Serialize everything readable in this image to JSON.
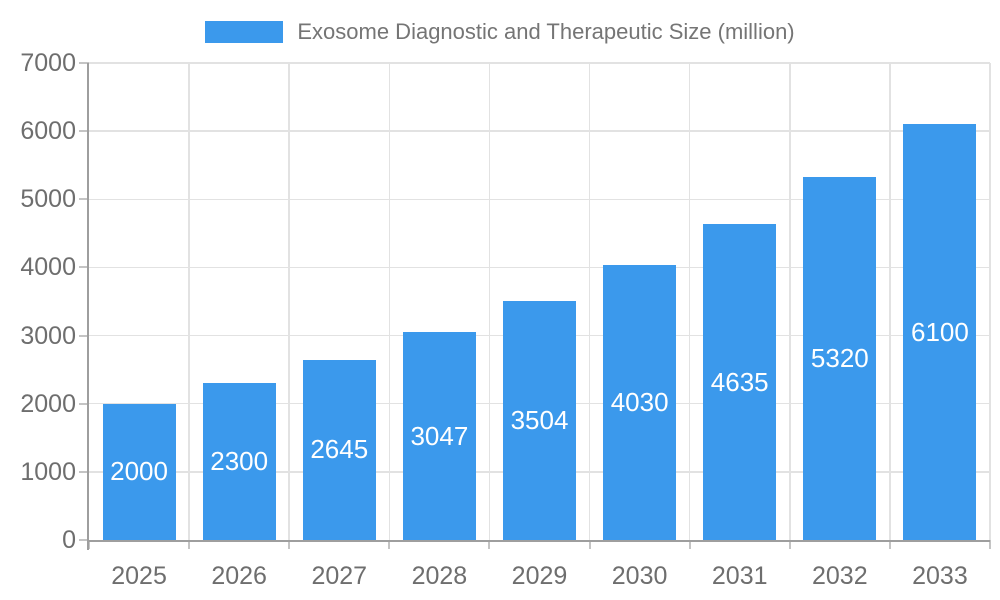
{
  "legend": {
    "swatch_color": "#3B99EC"
  },
  "chart_data": {
    "type": "bar",
    "title": "Exosome Diagnostic and Therapeutic Size (million)",
    "categories": [
      "2025",
      "2026",
      "2027",
      "2028",
      "2029",
      "2030",
      "2031",
      "2032",
      "2033"
    ],
    "values": [
      2000,
      2300,
      2645,
      3047,
      3504,
      4030,
      4635,
      5320,
      6100
    ],
    "xlabel": "",
    "ylabel": "",
    "ylim": [
      0,
      7000
    ],
    "ytick_step": 1000,
    "yticks": [
      "0",
      "1000",
      "2000",
      "3000",
      "4000",
      "5000",
      "6000",
      "7000"
    ],
    "grid": true,
    "legend_position": "top",
    "bar_label_position": "inside-center"
  },
  "style": {
    "bar_color": "#3B99EC",
    "value_label_color": "#ffffff",
    "axis_label_color": "#6e6e6e",
    "title_color": "#757575",
    "grid_color": "#e2e2e2",
    "axis_line_color": "#9e9e9e",
    "tick_color": "#c4c4c4",
    "background": "#ffffff"
  }
}
